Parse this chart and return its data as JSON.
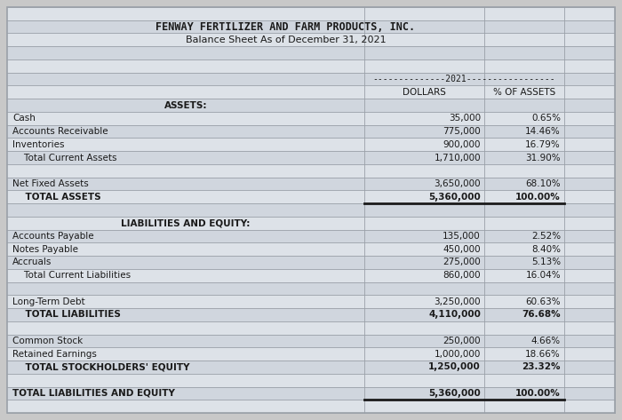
{
  "title": "FENWAY FERTILIZER AND FARM PRODUCTS, INC.",
  "subtitle": "Balance Sheet As of December 31, 2021",
  "year_header": "--------------2021-----------------",
  "col_headers": [
    "DOLLARS",
    "% OF ASSETS"
  ],
  "rows": [
    {
      "label": "",
      "dollars": "",
      "pct": "",
      "style": "blank"
    },
    {
      "label": "FENWAY FERTILIZER AND FARM PRODUCTS, INC.",
      "dollars": "",
      "pct": "",
      "style": "title"
    },
    {
      "label": "Balance Sheet As of December 31, 2021",
      "dollars": "",
      "pct": "",
      "style": "subtitle"
    },
    {
      "label": "",
      "dollars": "",
      "pct": "",
      "style": "blank"
    },
    {
      "label": "",
      "dollars": "",
      "pct": "",
      "style": "blank"
    },
    {
      "label": "",
      "dollars": "--------------2021-----------------",
      "pct": "",
      "style": "year_hdr"
    },
    {
      "label": "",
      "dollars": "DOLLARS",
      "pct": "% OF ASSETS",
      "style": "col_hdr"
    },
    {
      "label": "ASSETS:",
      "dollars": "",
      "pct": "",
      "style": "section_header"
    },
    {
      "label": "Cash",
      "dollars": "35,000",
      "pct": "0.65%",
      "style": "normal"
    },
    {
      "label": "Accounts Receivable",
      "dollars": "775,000",
      "pct": "14.46%",
      "style": "normal"
    },
    {
      "label": "Inventories",
      "dollars": "900,000",
      "pct": "16.79%",
      "style": "normal"
    },
    {
      "label": "    Total Current Assets",
      "dollars": "1,710,000",
      "pct": "31.90%",
      "style": "total"
    },
    {
      "label": "",
      "dollars": "",
      "pct": "",
      "style": "blank"
    },
    {
      "label": "Net Fixed Assets",
      "dollars": "3,650,000",
      "pct": "68.10%",
      "style": "normal"
    },
    {
      "label": "    TOTAL ASSETS",
      "dollars": "5,360,000",
      "pct": "100.00%",
      "style": "total_bold"
    },
    {
      "label": "",
      "dollars": "",
      "pct": "",
      "style": "blank"
    },
    {
      "label": "LIABILITIES AND EQUITY:",
      "dollars": "",
      "pct": "",
      "style": "section_header"
    },
    {
      "label": "Accounts Payable",
      "dollars": "135,000",
      "pct": "2.52%",
      "style": "normal"
    },
    {
      "label": "Notes Payable",
      "dollars": "450,000",
      "pct": "8.40%",
      "style": "normal"
    },
    {
      "label": "Accruals",
      "dollars": "275,000",
      "pct": "5.13%",
      "style": "normal"
    },
    {
      "label": "    Total Current Liabilities",
      "dollars": "860,000",
      "pct": "16.04%",
      "style": "total"
    },
    {
      "label": "",
      "dollars": "",
      "pct": "",
      "style": "blank"
    },
    {
      "label": "Long-Term Debt",
      "dollars": "3,250,000",
      "pct": "60.63%",
      "style": "normal"
    },
    {
      "label": "    TOTAL LIABILITIES",
      "dollars": "4,110,000",
      "pct": "76.68%",
      "style": "total_bold"
    },
    {
      "label": "",
      "dollars": "",
      "pct": "",
      "style": "blank"
    },
    {
      "label": "Common Stock",
      "dollars": "250,000",
      "pct": "4.66%",
      "style": "normal"
    },
    {
      "label": "Retained Earnings",
      "dollars": "1,000,000",
      "pct": "18.66%",
      "style": "normal"
    },
    {
      "label": "    TOTAL STOCKHOLDERS' EQUITY",
      "dollars": "1,250,000",
      "pct": "23.32%",
      "style": "total_bold"
    },
    {
      "label": "",
      "dollars": "",
      "pct": "",
      "style": "blank"
    },
    {
      "label": "TOTAL LIABILITIES AND EQUITY",
      "dollars": "5,360,000",
      "pct": "100.00%",
      "style": "total_bold"
    },
    {
      "label": "",
      "dollars": "",
      "pct": "",
      "style": "blank"
    }
  ],
  "outer_bg": "#c8c8c8",
  "inner_bg": "#dfe3e8",
  "row_bg_even": "#dde2e8",
  "row_bg_odd": "#d0d6de",
  "grid_color": "#9aa0a8",
  "text_color": "#1a1a1a",
  "fig_width": 7.0,
  "fig_height": 4.73
}
